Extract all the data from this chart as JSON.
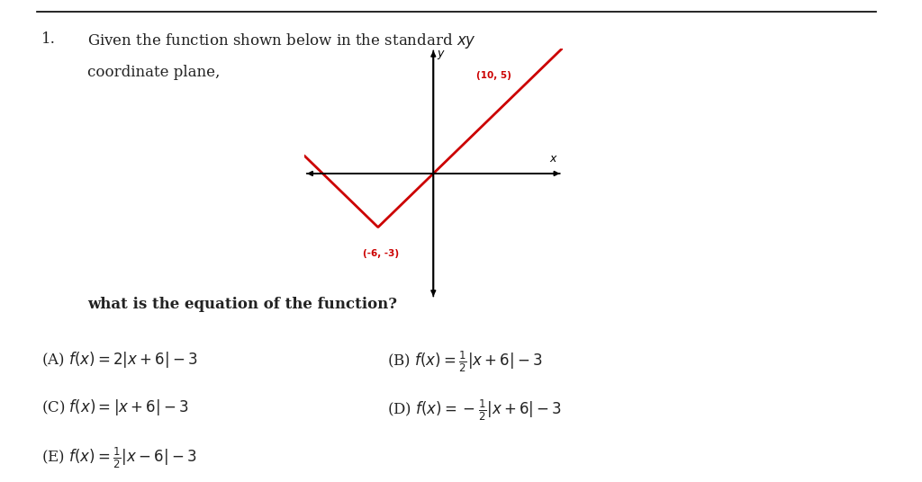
{
  "title_num": "1.",
  "title_line1": "Given the function shown below in the standard $xy$",
  "title_line2": "coordinate plane,",
  "question": "what is the equation of the function?",
  "choices_col1": [
    "(A) $f(x) = 2|x + 6| -3$",
    "(C) $f(x) = |x + 6| -3$",
    "(E) $f(x) = \\frac{1}{2}|x - 6| -3$"
  ],
  "choices_col2": [
    "(B) $f(x) = \\frac{1}{2}|x + 6| -3$",
    "(D) $f(x) = -\\frac{1}{2}|x + 6| -3$"
  ],
  "vertex": [
    -6,
    -3
  ],
  "point": [
    10,
    5
  ],
  "graph_color": "#cc0000",
  "axis_color": "#000000",
  "label_color": "#cc0000",
  "bg_color": "#ffffff",
  "text_color": "#222222",
  "graph_xlim": [
    -14,
    14
  ],
  "graph_ylim": [
    -7,
    7
  ]
}
